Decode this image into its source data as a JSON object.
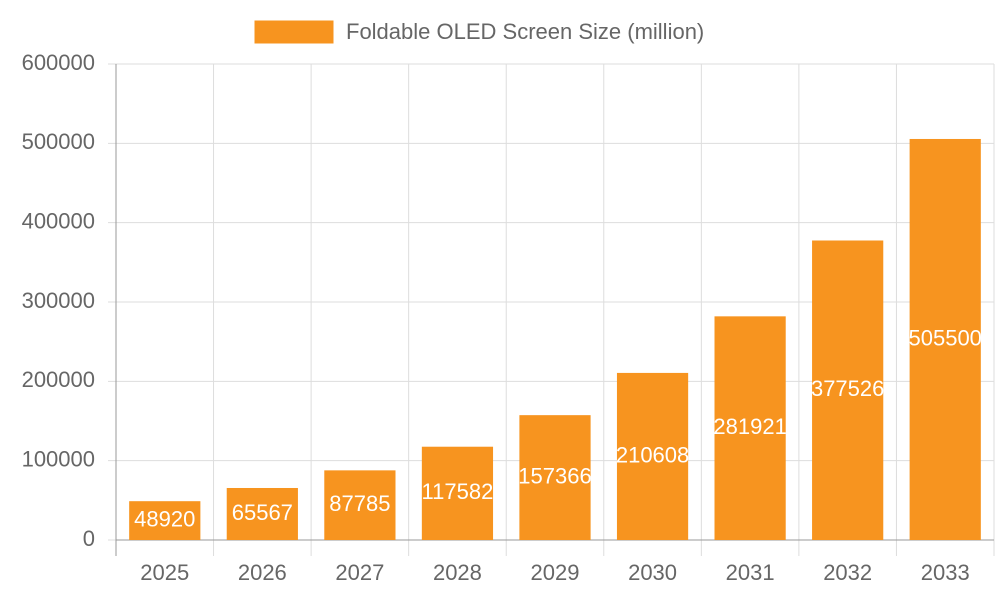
{
  "chart_data": {
    "type": "bar",
    "legend": "Foldable OLED Screen Size (million)",
    "categories": [
      "2025",
      "2026",
      "2027",
      "2028",
      "2029",
      "2030",
      "2031",
      "2032",
      "2033"
    ],
    "values": [
      48920,
      65567,
      87785,
      117582,
      157366,
      210608,
      281921,
      377526,
      505500
    ],
    "color": "#f7941f",
    "ylim": [
      0,
      600000
    ],
    "yticks": [
      0,
      100000,
      200000,
      300000,
      400000,
      500000,
      600000
    ],
    "grid": true
  }
}
